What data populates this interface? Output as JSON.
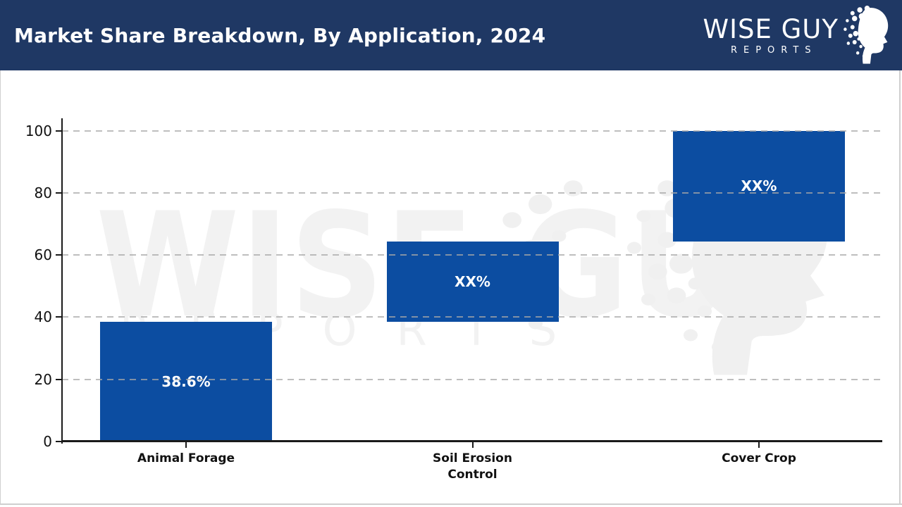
{
  "header": {
    "title": "Market Share Breakdown, By Application, 2024",
    "logo_primary": "WISE GUY",
    "logo_secondary": "REPORTS"
  },
  "watermark": {
    "primary": "WISE GUY",
    "secondary": "REPORTS"
  },
  "chart_data": {
    "type": "bar",
    "variant": "waterfall-breakdown",
    "title": "Market Share Breakdown, By Application, 2024",
    "categories": [
      "Animal Forage",
      "Soil Erosion Control",
      "Cover Crop"
    ],
    "category_label_lines": [
      [
        "Animal Forage"
      ],
      [
        "Soil Erosion",
        "Control"
      ],
      [
        "Cover Crop"
      ]
    ],
    "series": [
      {
        "category": "Animal Forage",
        "segment_start": 0,
        "segment_end": 38.6,
        "value_label": "38.6%"
      },
      {
        "category": "Soil Erosion Control",
        "segment_start": 38.6,
        "segment_end": 64.3,
        "value_label": "XX%"
      },
      {
        "category": "Cover Crop",
        "segment_start": 64.3,
        "segment_end": 100,
        "value_label": "XX%"
      }
    ],
    "yticks": [
      0,
      20,
      40,
      60,
      80,
      100
    ],
    "ylim": [
      0,
      104
    ],
    "xlabel": "",
    "ylabel": "",
    "grid": {
      "axis": "y",
      "style": "dashed"
    },
    "legend": "none",
    "colors": {
      "header_bg": "#1f3864",
      "bar": "#0c4da1",
      "bar_label_text": "#ffffff",
      "axis": "#1a1a1a",
      "grid": "#c8c8c8",
      "watermark": "#f2f2f2"
    }
  }
}
